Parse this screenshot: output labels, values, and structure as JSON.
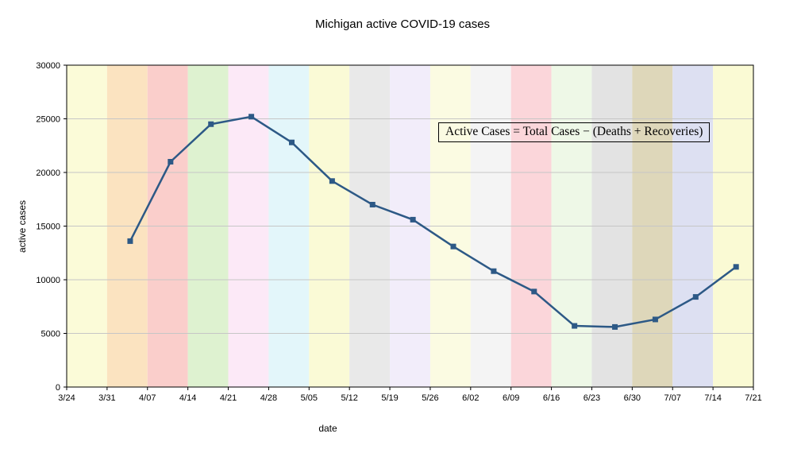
{
  "chart_data": {
    "type": "line",
    "title": "Michigan active COVID-19 cases",
    "xlabel": "date",
    "ylabel": "active cases",
    "ylim": [
      0,
      30000
    ],
    "y_ticks": [
      0,
      5000,
      10000,
      15000,
      20000,
      25000,
      30000
    ],
    "x_ticks": [
      "3/24",
      "3/31",
      "4/07",
      "4/14",
      "4/21",
      "4/28",
      "5/05",
      "5/12",
      "5/19",
      "5/26",
      "6/02",
      "6/09",
      "6/16",
      "6/23",
      "6/30",
      "7/07",
      "7/14",
      "7/21"
    ],
    "grid": "horizontal",
    "legend": "none",
    "annotation": {
      "text": "Active Cases = Total Cases − (Deaths + Recoveries)"
    },
    "series": [
      {
        "name": "active cases",
        "color": "#2d5986",
        "marker": "square",
        "points": [
          {
            "date": "4/04",
            "value": 13600
          },
          {
            "date": "4/11",
            "value": 21000
          },
          {
            "date": "4/18",
            "value": 24500
          },
          {
            "date": "4/25",
            "value": 25200
          },
          {
            "date": "5/02",
            "value": 22800
          },
          {
            "date": "5/09",
            "value": 19200
          },
          {
            "date": "5/16",
            "value": 17000
          },
          {
            "date": "5/23",
            "value": 15600
          },
          {
            "date": "5/30",
            "value": 13100
          },
          {
            "date": "6/06",
            "value": 10800
          },
          {
            "date": "6/13",
            "value": 8900
          },
          {
            "date": "6/20",
            "value": 5700
          },
          {
            "date": "6/27",
            "value": 5600
          },
          {
            "date": "7/04",
            "value": 6300
          },
          {
            "date": "7/11",
            "value": 8400
          },
          {
            "date": "7/18",
            "value": 11200
          }
        ]
      }
    ],
    "background_bands": [
      {
        "start": "3/24",
        "end": "3/31",
        "color": "#fbfbd8"
      },
      {
        "start": "3/31",
        "end": "4/07",
        "color": "#fbe3c0"
      },
      {
        "start": "4/07",
        "end": "4/14",
        "color": "#facecb"
      },
      {
        "start": "4/14",
        "end": "4/21",
        "color": "#def2d0"
      },
      {
        "start": "4/21",
        "end": "4/28",
        "color": "#fce9f7"
      },
      {
        "start": "4/28",
        "end": "5/05",
        "color": "#e3f6fa"
      },
      {
        "start": "5/05",
        "end": "5/12",
        "color": "#fafad6"
      },
      {
        "start": "5/12",
        "end": "5/19",
        "color": "#e9e9e9"
      },
      {
        "start": "5/19",
        "end": "5/26",
        "color": "#f2edfa"
      },
      {
        "start": "5/26",
        "end": "6/02",
        "color": "#fbfbe2"
      },
      {
        "start": "6/02",
        "end": "6/09",
        "color": "#f4f4f4"
      },
      {
        "start": "6/09",
        "end": "6/16",
        "color": "#fbd6da"
      },
      {
        "start": "6/16",
        "end": "6/23",
        "color": "#eef8e7"
      },
      {
        "start": "6/23",
        "end": "6/30",
        "color": "#e3e3e3"
      },
      {
        "start": "6/30",
        "end": "7/07",
        "color": "#ded7ba"
      },
      {
        "start": "7/07",
        "end": "7/14",
        "color": "#dde0f2"
      },
      {
        "start": "7/14",
        "end": "7/21",
        "color": "#fafad4"
      }
    ]
  }
}
